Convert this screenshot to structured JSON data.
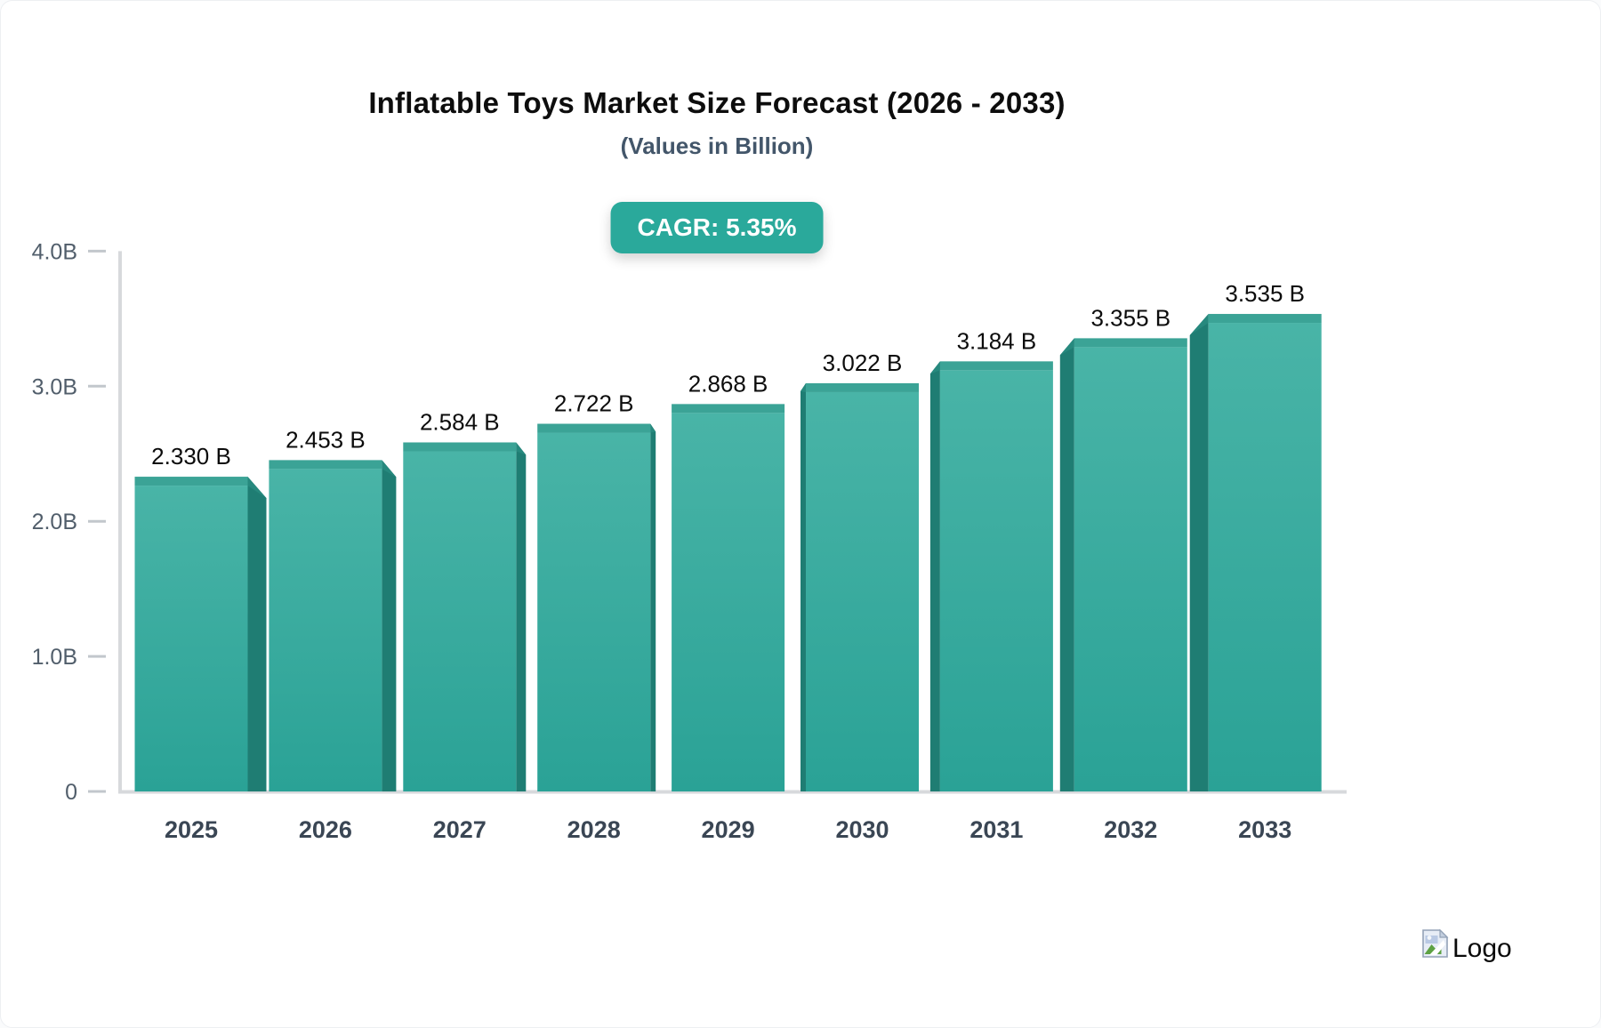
{
  "header": {
    "title": "Inflatable Toys Market Size Forecast (2026 - 2033)",
    "subtitle": "(Values in Billion)"
  },
  "badge": {
    "label": "CAGR: 5.35%",
    "bg_color": "#2aa99b"
  },
  "chart_data": {
    "type": "bar",
    "style": "3d-perspective-center-vanishing",
    "title": "Inflatable Toys Market Size Forecast (2026 - 2033)",
    "subtitle": "(Values in Billion)",
    "unit": "Billion",
    "cagr": "5.35%",
    "categories": [
      "2025",
      "2026",
      "2027",
      "2028",
      "2029",
      "2030",
      "2031",
      "2032",
      "2033"
    ],
    "values": [
      2.33,
      2.453,
      2.584,
      2.722,
      2.868,
      3.022,
      3.184,
      3.355,
      3.535
    ],
    "value_labels": [
      "2.330 B",
      "2.453 B",
      "2.584 B",
      "2.722 B",
      "2.868 B",
      "3.022 B",
      "3.184 B",
      "3.355 B",
      "3.535 B"
    ],
    "ylim": [
      0,
      4
    ],
    "yticks": [
      {
        "value": 0,
        "label": "0"
      },
      {
        "value": 1,
        "label": "1.0B"
      },
      {
        "value": 2,
        "label": "2.0B"
      },
      {
        "value": 3,
        "label": "3.0B"
      },
      {
        "value": 4,
        "label": "4.0B"
      }
    ],
    "grid": false,
    "legend": "none",
    "colors": {
      "bar_front_top": "#49b4a7",
      "bar_front_bottom": "#2aa296",
      "bar_top_face": "#3ba396",
      "bar_side_face": "#1f7d73",
      "bar_bevel": "#27897e",
      "axis_line": "#d7d9dc",
      "tick_dash": "#c2c7cc",
      "tick_text": "#515e6b",
      "xlabel_text": "#3a4654",
      "value_text": "#0c0c0c"
    }
  },
  "footer": {
    "logo_text": "Logo"
  }
}
